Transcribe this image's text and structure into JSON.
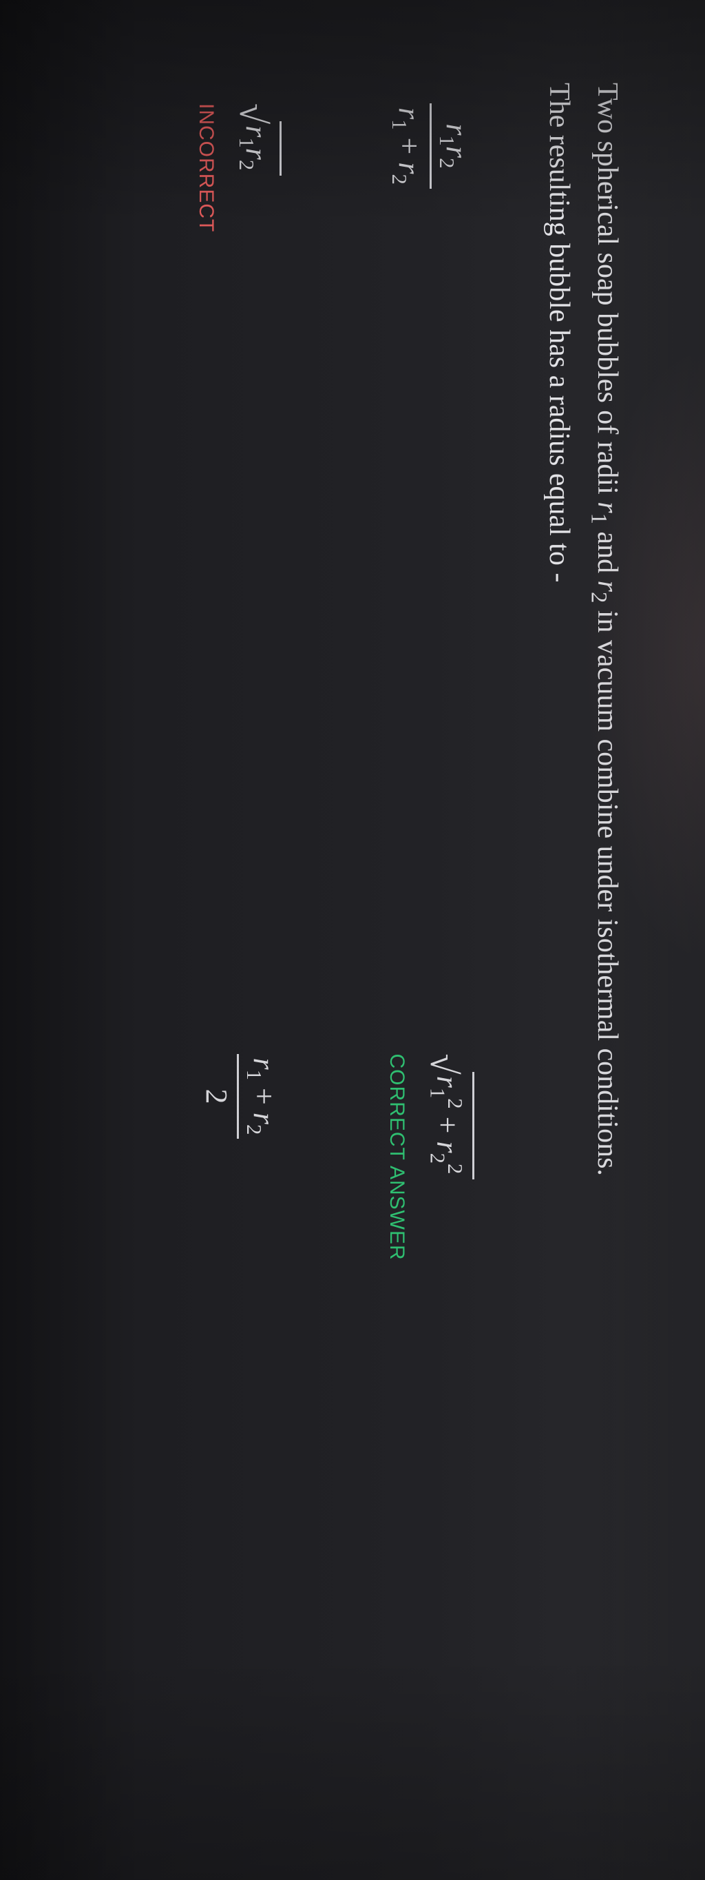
{
  "question": {
    "line1_pre": "Two spherical soap bubbles of radii ",
    "r1": "r",
    "r1_sub": "1",
    "mid1": " and ",
    "r2": "r",
    "r2_sub": "2",
    "line1_post": " in vacuum combine under isothermal conditions.",
    "line2": "The resulting bubble has a radius equal to -"
  },
  "options": {
    "a": {
      "num_a": "r",
      "num_a_sub": "1",
      "num_b": "r",
      "num_b_sub": "2",
      "den_a": "r",
      "den_a_sub": "1",
      "plus": " + ",
      "den_b": "r",
      "den_b_sub": "2"
    },
    "b": {
      "rad_a": "r",
      "rad_a_sub": "1",
      "rad_a_sup": "2",
      "plus": " + ",
      "rad_b": "r",
      "rad_b_sub": "2",
      "rad_b_sup": "2",
      "tag": "CORRECT ANSWER"
    },
    "c": {
      "rad_a": "r",
      "rad_a_sub": "1",
      "rad_b": "r",
      "rad_b_sub": "2",
      "tag": "INCORRECT"
    },
    "d": {
      "num_a": "r",
      "num_a_sub": "1",
      "plus": " + ",
      "num_b": "r",
      "num_b_sub": "2",
      "den": "2"
    }
  },
  "colors": {
    "text": "#d8d8dc",
    "correct": "#2fbf71",
    "incorrect": "#e05a5a",
    "background": "#222226"
  }
}
